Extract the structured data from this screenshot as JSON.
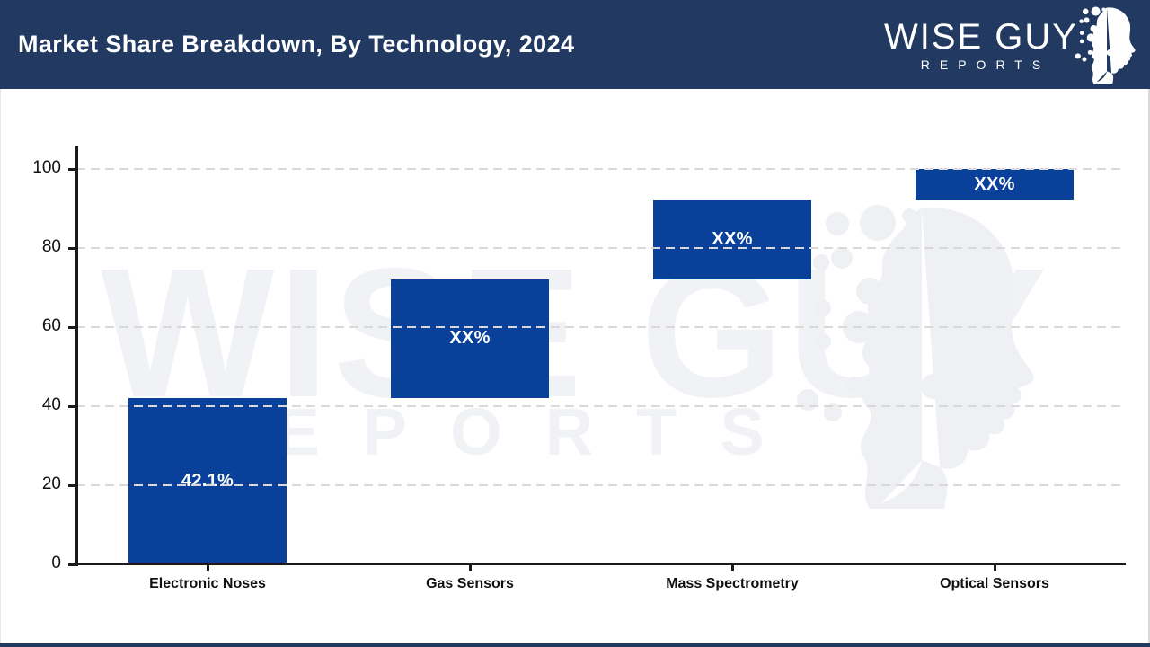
{
  "header": {
    "title": "Market Share Breakdown, By Technology, 2024",
    "background_color": "#223961",
    "logo": {
      "line1": "WISE GUY",
      "line2": "REPORTS"
    }
  },
  "watermark": {
    "line1": "WISE GUY",
    "line2": "REPORTS"
  },
  "chart_data": {
    "type": "bar",
    "variant": "waterfall",
    "title": "Market Share Breakdown, By Technology, 2024",
    "categories": [
      "Electronic Noses",
      "Gas Sensors",
      "Mass Spectrometry",
      "Optical Sensors"
    ],
    "segments": [
      {
        "category": "Electronic Noses",
        "start": 0,
        "end": 42.1,
        "value_label": "42.1%",
        "value": 42.1
      },
      {
        "category": "Gas Sensors",
        "start": 42.1,
        "end": 72.1,
        "value_label": "XX%",
        "value_estimate": 30
      },
      {
        "category": "Mass Spectrometry",
        "start": 72.1,
        "end": 92.1,
        "value_label": "XX%",
        "value_estimate": 20
      },
      {
        "category": "Optical Sensors",
        "start": 92.1,
        "end": 100,
        "value_label": "XX%",
        "value_estimate": 7.9
      }
    ],
    "xlabel": "",
    "ylabel": "",
    "ylim": [
      0,
      105.7
    ],
    "yticks": [
      0,
      20,
      40,
      60,
      80,
      100
    ],
    "grid": {
      "axis": "y",
      "style": "dashed",
      "color": "#d9d9d9",
      "above_bars": true
    },
    "legend": "none",
    "bar_color": "#09409a",
    "bar_label_color": "#ffffff",
    "axis_color": "#1a1a1a",
    "tick_label_color": "#111111"
  }
}
